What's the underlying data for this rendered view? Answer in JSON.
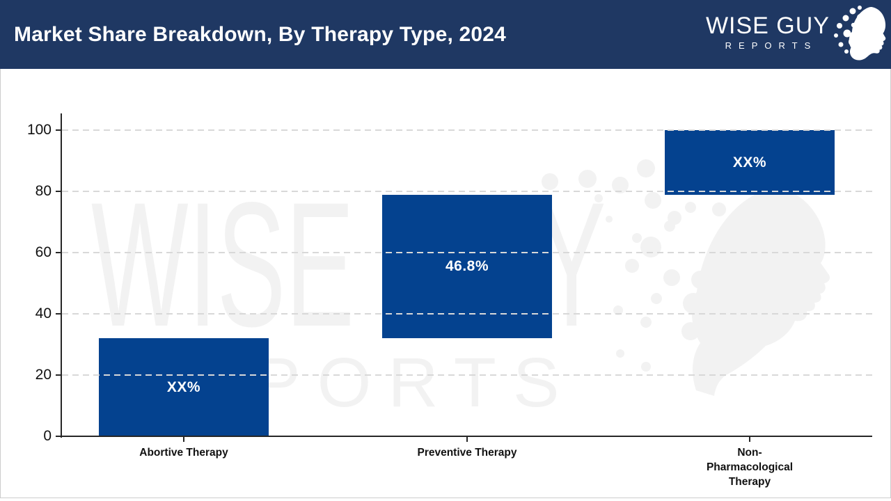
{
  "header": {
    "title": "Market Share Breakdown, By Therapy Type, 2024",
    "logo": {
      "brand": "WISE GUY",
      "sub": "REPORTS"
    }
  },
  "icons": {
    "logo_face": "dotted-face-profile-icon",
    "watermark_face": "dotted-face-profile-icon"
  },
  "watermark": {
    "line1": "WISE GUY",
    "line2": "REPORTS"
  },
  "colors": {
    "header_bg": "#1F3863",
    "bar": "#04428F",
    "grid": "#D8D8D8",
    "axis": "#262626",
    "watermark": "#F2F2F2",
    "frame_border": "#CCCCCC",
    "bar_label": "#FFFFFF",
    "tick_label": "#111111"
  },
  "chart_data": {
    "type": "bar",
    "subtype": "waterfall",
    "title": "Market Share Breakdown, By Therapy Type, 2024",
    "categories": [
      "Abortive Therapy",
      "Preventive Therapy",
      "Non-Pharmacological Therapy"
    ],
    "category_label_lines": [
      [
        "Abortive Therapy"
      ],
      [
        "Preventive Therapy"
      ],
      [
        "Non-",
        "Pharmacological",
        "Therapy"
      ]
    ],
    "segments": [
      {
        "category": "Abortive Therapy",
        "start": 0,
        "end": 32,
        "label": "XX%"
      },
      {
        "category": "Preventive Therapy",
        "start": 32,
        "end": 78.8,
        "label": "46.8%"
      },
      {
        "category": "Non-Pharmacological Therapy",
        "start": 78.8,
        "end": 100,
        "label": "XX%"
      }
    ],
    "xlabel": "",
    "ylabel": "",
    "ylim": [
      0,
      105.5
    ],
    "yticks": [
      0,
      20,
      40,
      60,
      80,
      100
    ],
    "grid": "horizontal-dashed",
    "legend": "none",
    "bar_color": "#04428F",
    "value_label_color": "#FFFFFF"
  }
}
